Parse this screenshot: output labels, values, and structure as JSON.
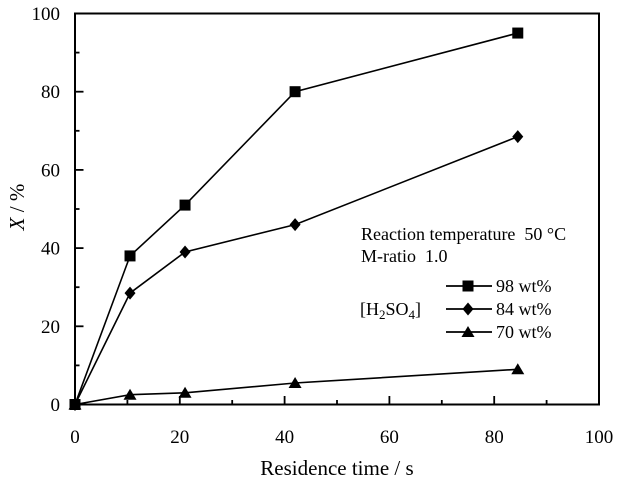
{
  "page": {
    "background_color": "#ffffff",
    "foreground_color": "#000000"
  },
  "chart_data": {
    "type": "line",
    "title": "",
    "xlabel": "Residence time / s",
    "ylabel": "X / %",
    "ylabel_var": "X",
    "ylabel_unit": " / %",
    "xlim": [
      0,
      100
    ],
    "ylim": [
      0,
      100
    ],
    "x_major_ticks": [
      0,
      20,
      40,
      60,
      80,
      100
    ],
    "y_major_ticks": [
      0,
      20,
      40,
      60,
      80,
      100
    ],
    "minor_tick_step": 10,
    "grid": false,
    "legend_position": "inside-right-middle",
    "x": [
      0,
      10.5,
      21,
      42,
      84.5
    ],
    "series": [
      {
        "name": "98 wt%",
        "marker": "square",
        "color": "#000000",
        "values": [
          0,
          38,
          51,
          80,
          95
        ]
      },
      {
        "name": "84 wt%",
        "marker": "diamond",
        "color": "#000000",
        "values": [
          0,
          28.5,
          39,
          46,
          68.5
        ]
      },
      {
        "name": "70 wt%",
        "marker": "triangle",
        "color": "#000000",
        "values": [
          0,
          2.5,
          3,
          5.5,
          9
        ]
      }
    ]
  },
  "annotations": {
    "reaction_temperature": "Reaction temperature  50 °C",
    "m_ratio": "M-ratio  1.0",
    "h2so4": {
      "p1": "[H",
      "s1": "2",
      "p2": "SO",
      "s2": "4",
      "p3": "]"
    }
  },
  "legend": {
    "entries": [
      {
        "marker": "square",
        "label": "98 wt%"
      },
      {
        "marker": "diamond",
        "label": "84 wt%"
      },
      {
        "marker": "triangle",
        "label": "70 wt%"
      }
    ]
  }
}
